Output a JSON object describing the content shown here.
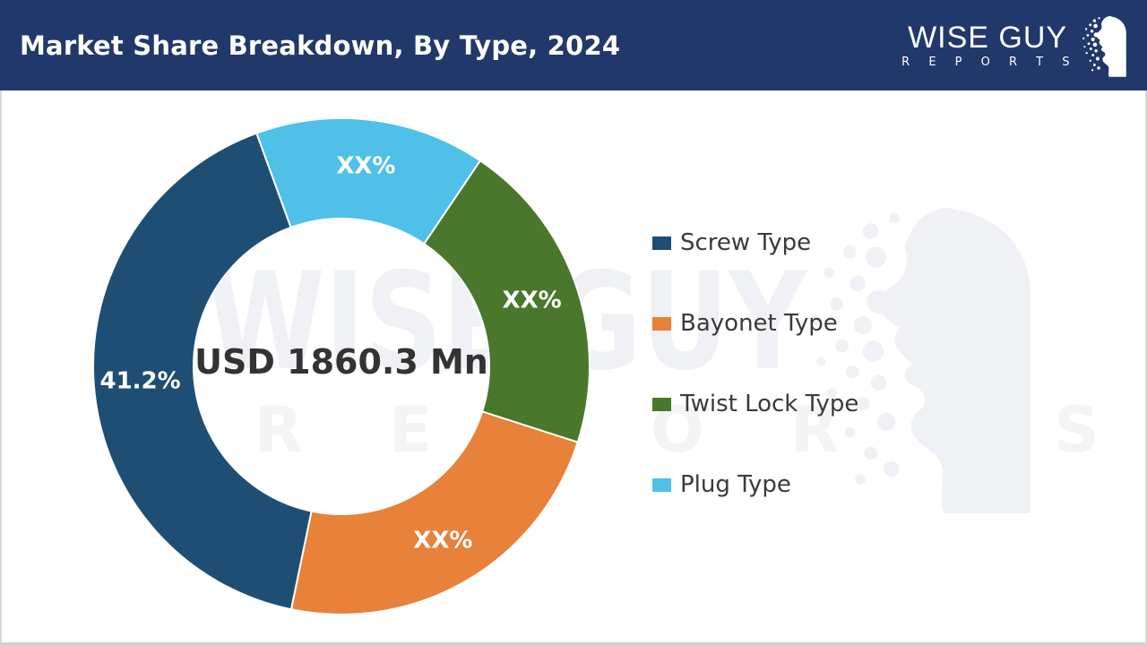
{
  "header": {
    "title": "Market Share Breakdown, By Type, 2024",
    "logo": {
      "line1": "WISE GUY",
      "line2": "R E P O R T S"
    }
  },
  "watermark": {
    "line1": "WISE GUY",
    "line2": "REPORTS"
  },
  "chart_data": {
    "type": "pie",
    "subtype": "donut",
    "title": "Market Share Breakdown, By Type, 2024",
    "center_label": "USD 1860.3 Mn",
    "start_angle_deg": -20,
    "legend_position": "right",
    "slices": [
      {
        "name": "Screw Type",
        "label": "41.2%",
        "value": 41.2,
        "color": "#1f4e74"
      },
      {
        "name": "Bayonet Type",
        "label": "XX%",
        "value": 23.3,
        "color": "#e8813a"
      },
      {
        "name": "Twist Lock Type",
        "label": "XX%",
        "value": 20.5,
        "color": "#49772c"
      },
      {
        "name": "Plug Type",
        "label": "XX%",
        "value": 15.0,
        "color": "#4fc0e8"
      }
    ]
  },
  "colors": {
    "header_bg": "#21386a",
    "card_bg": "#ffffff",
    "legend_text": "#3a3a3a",
    "center_text": "#333333",
    "watermark": "#f0f1f4",
    "border": "#d2d2d2"
  }
}
